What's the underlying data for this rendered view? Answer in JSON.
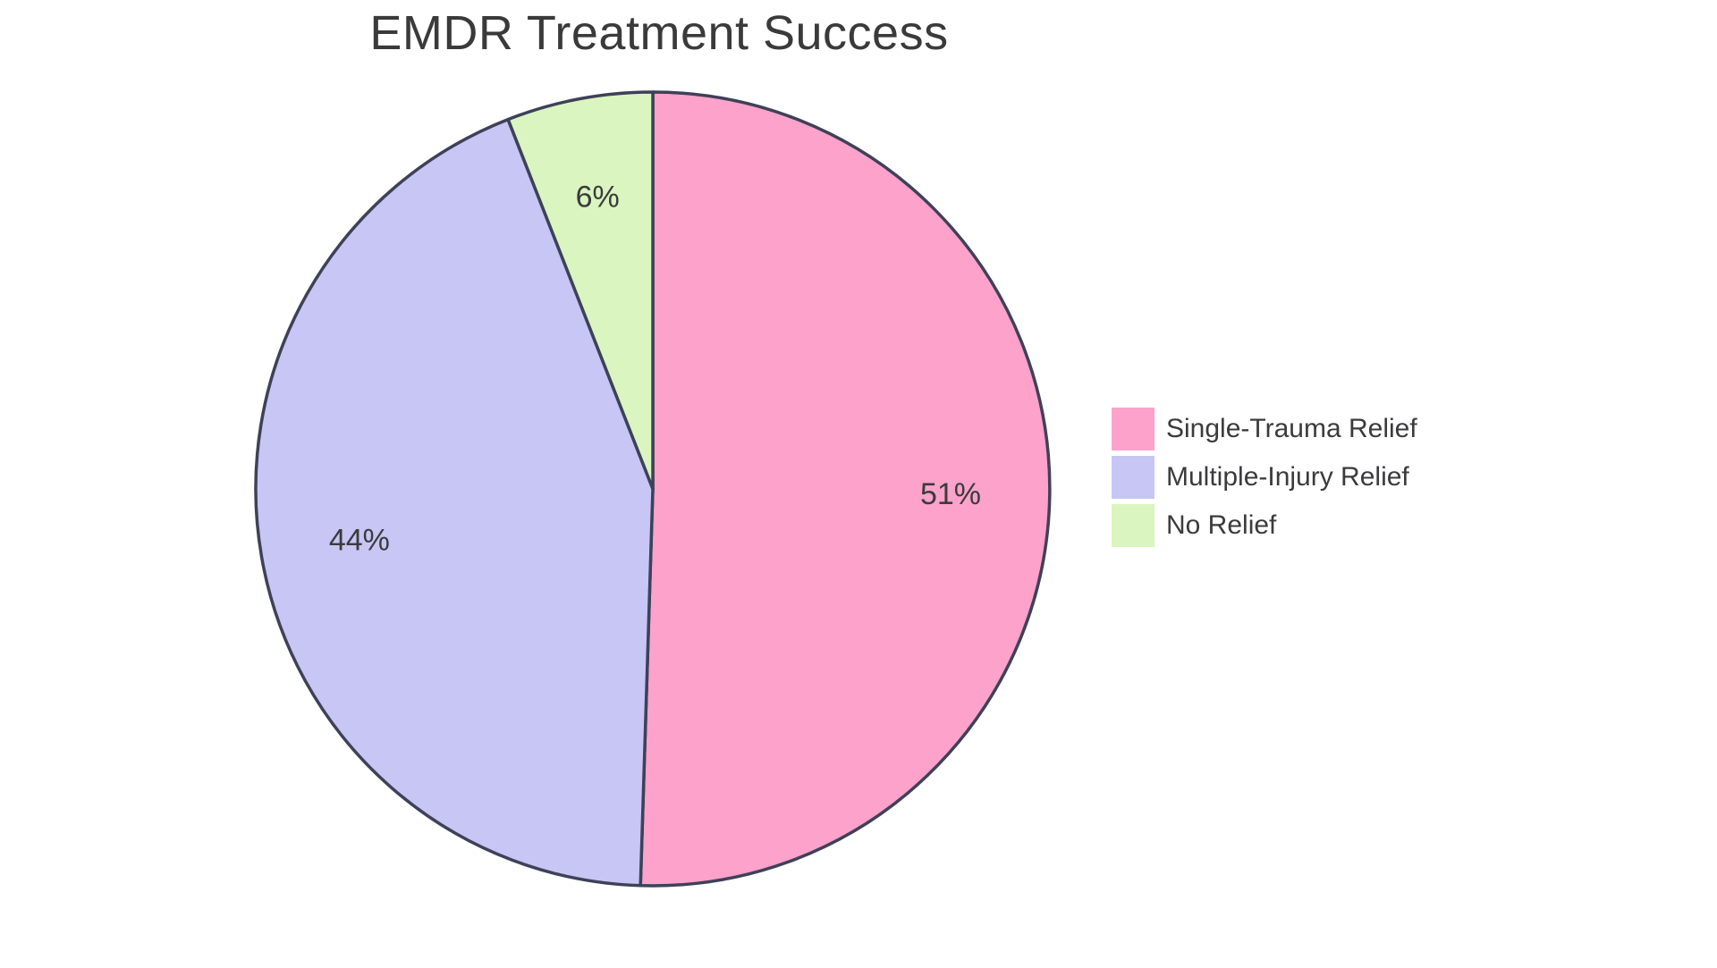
{
  "page": {
    "background_color": "#FFFFFF"
  },
  "chart_data": {
    "type": "pie",
    "title": "EMDR Treatment Success",
    "categories": [
      "Single-Trauma Relief",
      "Multiple-Injury Relief",
      "No Relief"
    ],
    "values": [
      51,
      44,
      6
    ],
    "percent_labels": [
      "51%",
      "44%",
      "6%"
    ],
    "slice_colors": [
      "#FCA2CB",
      "#C7C6F4",
      "#DAF5BF"
    ],
    "slice_stroke_color": "#3E4158",
    "text_color": "#3B3B3D",
    "title_color": "#3A3A3A",
    "legend_position": "right",
    "start_angle": "12-o-clock",
    "direction": "clockwise",
    "labels_inside": true
  }
}
